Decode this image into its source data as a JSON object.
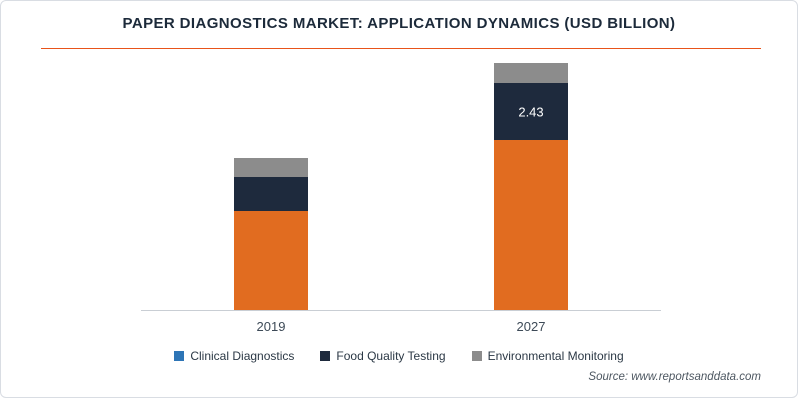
{
  "title": "PAPER DIAGNOSTICS MARKET: APPLICATION DYNAMICS (USD BILLION)",
  "source": "Source: www.reportsanddata.com",
  "accent_line_color": "#e8531a",
  "chart_data": {
    "type": "bar",
    "stacked": true,
    "title": "PAPER DIAGNOSTICS MARKET: APPLICATION DYNAMICS (USD BILLION)",
    "xlabel": "",
    "ylabel": "USD Billion",
    "ylim": [
      0,
      10.6
    ],
    "grid": false,
    "legend_position": "bottom",
    "categories": [
      "2019",
      "2027"
    ],
    "series": [
      {
        "name": "Clinical Diagnostics",
        "bar_color": "#e16c20",
        "legend_color": "#2e75b6",
        "values": [
          4.2,
          7.2
        ]
      },
      {
        "name": "Food Quality Testing",
        "bar_color": "#1e2a3d",
        "legend_color": "#1e2a3d",
        "values": [
          1.45,
          2.43
        ]
      },
      {
        "name": "Environmental Monitoring",
        "bar_color": "#8c8c8c",
        "legend_color": "#8c8c8c",
        "values": [
          0.8,
          0.85
        ]
      }
    ],
    "data_labels": [
      {
        "category": "2027",
        "series": "Food Quality Testing",
        "text": "2.43"
      }
    ]
  }
}
